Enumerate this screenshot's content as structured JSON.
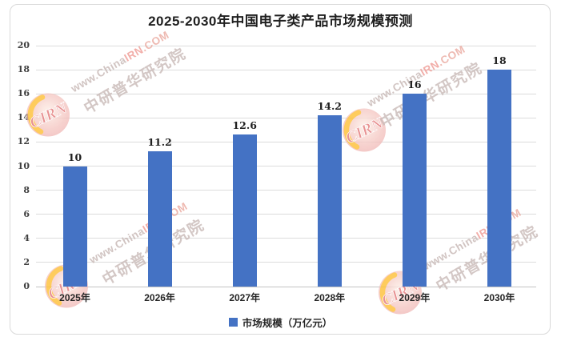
{
  "title": "2025-2030年中国电子类产品市场规模预测",
  "chart_data": {
    "type": "bar",
    "title": "2025-2030年中国电子类产品市场规模预测",
    "categories": [
      "2025年",
      "2026年",
      "2027年",
      "2028年",
      "2029年",
      "2030年"
    ],
    "values": [
      10,
      11.2,
      12.6,
      14.2,
      16,
      18
    ],
    "data_labels": [
      "10",
      "11.2",
      "12.6",
      "14.2",
      "16",
      "18"
    ],
    "series_name": "市场规模（万亿元）",
    "xlabel": "",
    "ylabel": "",
    "ylim": [
      0,
      20
    ],
    "ytick_step": 2,
    "yticks": [
      0,
      2,
      4,
      6,
      8,
      10,
      12,
      14,
      16,
      18,
      20
    ],
    "grid": true,
    "legend_position": "bottom",
    "bar_color": "#4472C4"
  },
  "legend": {
    "label": "市场规模（万亿元）",
    "swatch_color": "#4472C4"
  },
  "watermark": {
    "logo_text": "CIRN",
    "line1_segments": [
      {
        "text": "www.China",
        "color": "#c6b6b3"
      },
      {
        "text": "IRN",
        "color": "#ef9a94"
      },
      {
        "text": ".COM",
        "color": "#eaa89e"
      }
    ],
    "line2": "中研普华研究院",
    "tiles": [
      {
        "logo": [
          60,
          146
        ],
        "l1": [
          150,
          77
        ],
        "l2": [
          168,
          100
        ]
      },
      {
        "logo": [
          83,
          360
        ],
        "l1": [
          173,
          291
        ],
        "l2": [
          191,
          314
        ]
      },
      {
        "logo": [
          455,
          165
        ],
        "l1": [
          520,
          95
        ],
        "l2": [
          538,
          118
        ]
      },
      {
        "logo": [
          500,
          368
        ],
        "l1": [
          590,
          299
        ],
        "l2": [
          608,
          322
        ]
      }
    ]
  },
  "colors": {
    "bar": "#4472C4",
    "gridline": "#dcdcdc",
    "axis_line": "#c3c3c3",
    "title_text": "#1f1f1f",
    "tick_text": "#3f3f3f",
    "frame_border": "#d9d9d9",
    "watermark_logo_fill": "#f5c9c4",
    "watermark_crescent": "#ffc233",
    "watermark_logo_text": "#e57f80"
  }
}
